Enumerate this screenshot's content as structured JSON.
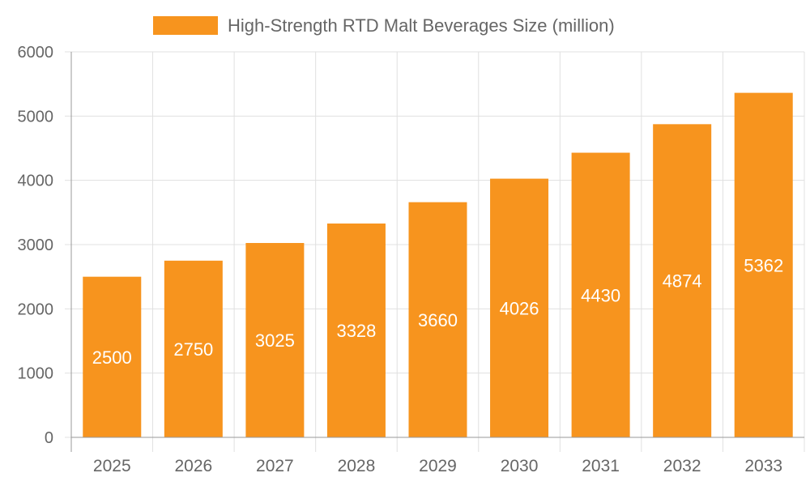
{
  "chart_data": {
    "type": "bar",
    "title": "",
    "xlabel": "",
    "ylabel": "",
    "categories": [
      "2025",
      "2026",
      "2027",
      "2028",
      "2029",
      "2030",
      "2031",
      "2032",
      "2033"
    ],
    "series": [
      {
        "name": "High-Strength RTD Malt Beverages Size (million)",
        "values": [
          2500,
          2750,
          3025,
          3328,
          3660,
          4026,
          4430,
          4874,
          5362
        ]
      }
    ],
    "ylim": [
      0,
      6000
    ],
    "yticks": [
      0,
      1000,
      2000,
      3000,
      4000,
      5000,
      6000
    ],
    "grid": true,
    "legend": "top-center",
    "data_labels": true,
    "colors": {
      "bar": "#F7941E",
      "label": "#ffffff",
      "grid": "#e0e0e0",
      "text": "#666666"
    }
  }
}
